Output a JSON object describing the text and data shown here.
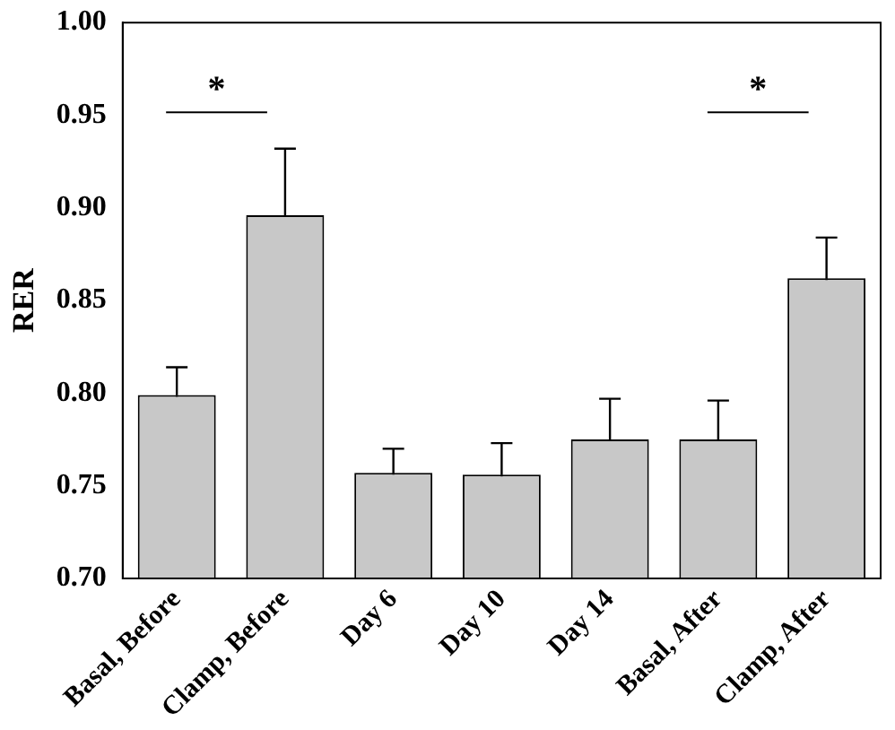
{
  "chart_data": {
    "type": "bar",
    "ylabel": "RER",
    "categories": [
      "Basal, Before",
      "Clamp, Before",
      "Day 6",
      "Day 10",
      "Day 14",
      "Basal, After",
      "Clamp, After"
    ],
    "values": [
      0.799,
      0.896,
      0.757,
      0.756,
      0.775,
      0.775,
      0.862
    ],
    "errors": [
      0.015,
      0.036,
      0.013,
      0.017,
      0.022,
      0.021,
      0.022
    ],
    "color": "#c8c8c8",
    "ylim": [
      0.7,
      1.0
    ],
    "yticks": [
      {
        "value": 0.7,
        "label": "0.70"
      },
      {
        "value": 0.75,
        "label": "0.75"
      },
      {
        "value": 0.8,
        "label": "0.80"
      },
      {
        "value": 0.85,
        "label": "0.85"
      },
      {
        "value": 0.9,
        "label": "0.90"
      },
      {
        "value": 0.95,
        "label": "0.95"
      },
      {
        "value": 1.0,
        "label": "1.00"
      }
    ],
    "grid": false,
    "legend": false,
    "annotations": [
      "*",
      "*"
    ]
  }
}
